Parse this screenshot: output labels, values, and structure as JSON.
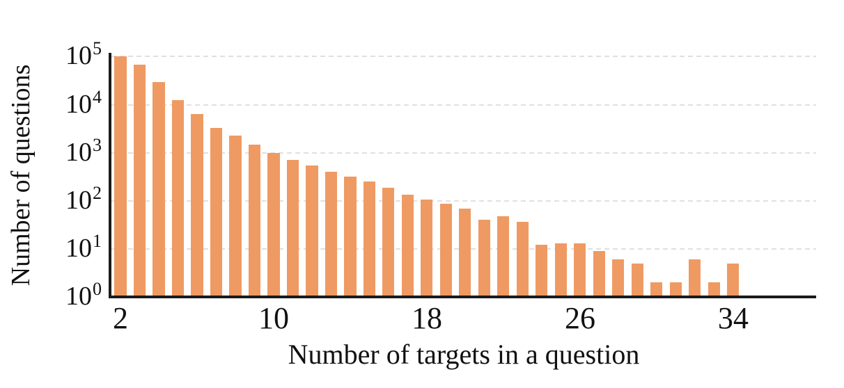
{
  "chart_data": {
    "type": "bar",
    "title": "",
    "xlabel": "Number of targets in a question",
    "ylabel": "Number of questions",
    "y_scale": "log",
    "grid": "horizontal-dashed",
    "legend": "none",
    "x": [
      2,
      3,
      4,
      5,
      6,
      7,
      8,
      9,
      10,
      11,
      12,
      13,
      14,
      15,
      16,
      17,
      18,
      19,
      20,
      21,
      22,
      23,
      24,
      25,
      26,
      27,
      28,
      29,
      30,
      31,
      32,
      33,
      34
    ],
    "values": [
      100000,
      68000,
      30000,
      12500,
      6400,
      3300,
      2250,
      1500,
      1000,
      700,
      550,
      400,
      320,
      250,
      190,
      135,
      105,
      88,
      68,
      40,
      47,
      36,
      12,
      13,
      13,
      9,
      6,
      5,
      2,
      2,
      6,
      2,
      5
    ],
    "x_ticks": [
      2,
      10,
      18,
      26,
      34
    ],
    "y_tick_base": "10",
    "y_tick_exponents": [
      0,
      1,
      2,
      3,
      4,
      5
    ],
    "xlim": [
      1.527,
      38.33
    ],
    "ylim_exp": [
      0,
      5.05
    ],
    "bar_width_units": 0.62,
    "colors": {
      "bar": "#EF9A63",
      "grid": "#E0E0E0",
      "axis": "#1B1B1B",
      "text": "#111111",
      "background": "#FFFFFF"
    }
  }
}
